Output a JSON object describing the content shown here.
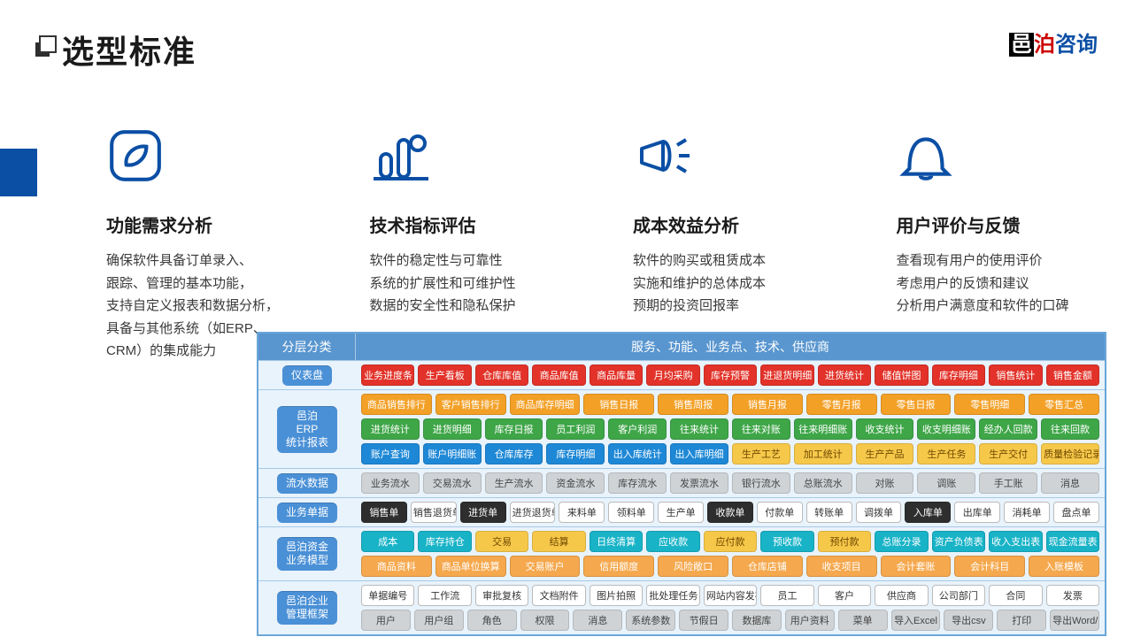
{
  "title": "选型标准",
  "logo": {
    "a": "邑",
    "b": "泊",
    "c": "咨询"
  },
  "cols": [
    {
      "h": "功能需求分析",
      "p": "确保软件具备订单录入、\n跟踪、管理的基本功能，\n支持自定义报表和数据分析，\n具备与其他系统（如ERP、\nCRM）的集成能力"
    },
    {
      "h": "技术指标评估",
      "p": "软件的稳定性与可靠性\n系统的扩展性和可维护性\n数据的安全性和隐私保护"
    },
    {
      "h": "成本效益分析",
      "p": "软件的购买或租赁成本\n实施和维护的总体成本\n预期的投资回报率"
    },
    {
      "h": "用户评价与反馈",
      "p": "查看现有用户的使用评价\n考虑用户的反馈和建议\n分析用户满意度和软件的口碑"
    }
  ],
  "diagram": {
    "head": [
      "分层分类",
      "服务、功能、业务点、技术、供应商"
    ],
    "rows": [
      {
        "left": "仪表盘",
        "lines": [
          [
            [
              "业务进度条",
              "red"
            ],
            [
              "生产看板",
              "red"
            ],
            [
              "仓库库值",
              "red"
            ],
            [
              "商品库值",
              "red"
            ],
            [
              "商品库量",
              "red"
            ],
            [
              "月均采购",
              "red"
            ],
            [
              "库存预警",
              "red"
            ],
            [
              "进退货明细",
              "red"
            ],
            [
              "进货统计",
              "red"
            ],
            [
              "储值饼图",
              "red"
            ],
            [
              "库存明细",
              "red"
            ],
            [
              "销售统计",
              "red"
            ],
            [
              "销售金额",
              "red"
            ]
          ]
        ]
      },
      {
        "left": "邑泊\nERP\n统计报表",
        "lines": [
          [
            [
              "商品销售排行",
              "orange"
            ],
            [
              "客户销售排行",
              "orange"
            ],
            [
              "商品库存明细",
              "orange"
            ],
            [
              "销售日报",
              "orange"
            ],
            [
              "销售周报",
              "orange"
            ],
            [
              "销售月报",
              "orange"
            ],
            [
              "零售月报",
              "orange"
            ],
            [
              "零售日报",
              "orange"
            ],
            [
              "零售明细",
              "orange"
            ],
            [
              "零售汇总",
              "orange"
            ]
          ],
          [
            [
              "进货统计",
              "green"
            ],
            [
              "进货明细",
              "green"
            ],
            [
              "库存日报",
              "green"
            ],
            [
              "员工利润",
              "green"
            ],
            [
              "客户利润",
              "green"
            ],
            [
              "往来统计",
              "green"
            ],
            [
              "往来对账",
              "green"
            ],
            [
              "往来明细账",
              "green"
            ],
            [
              "收支统计",
              "green"
            ],
            [
              "收支明细账",
              "green"
            ],
            [
              "经办人回款",
              "green"
            ],
            [
              "往来回款",
              "green"
            ]
          ],
          [
            [
              "账户查询",
              "blue"
            ],
            [
              "账户明细账",
              "blue"
            ],
            [
              "仓库库存",
              "blue"
            ],
            [
              "库存明细",
              "blue"
            ],
            [
              "出入库统计",
              "blue"
            ],
            [
              "出入库明细",
              "blue"
            ],
            [
              "生产工艺",
              "yellow"
            ],
            [
              "加工统计",
              "yellow"
            ],
            [
              "生产产品",
              "yellow"
            ],
            [
              "生产任务",
              "yellow"
            ],
            [
              "生产交付",
              "yellow"
            ],
            [
              "质量检验记录",
              "yellow"
            ]
          ]
        ]
      },
      {
        "left": "流水数据",
        "lines": [
          [
            [
              "业务流水",
              "gray"
            ],
            [
              "交易流水",
              "gray"
            ],
            [
              "生产流水",
              "gray"
            ],
            [
              "资金流水",
              "gray"
            ],
            [
              "库存流水",
              "gray"
            ],
            [
              "发票流水",
              "gray"
            ],
            [
              "银行流水",
              "gray"
            ],
            [
              "总账流水",
              "gray"
            ],
            [
              "对账",
              "gray"
            ],
            [
              "调账",
              "gray"
            ],
            [
              "手工账",
              "gray"
            ],
            [
              "消息",
              "gray"
            ]
          ]
        ]
      },
      {
        "left": "业务单据",
        "lines": [
          [
            [
              "销售单",
              "dark"
            ],
            [
              "销售退货单",
              "white"
            ],
            [
              "进货单",
              "dark"
            ],
            [
              "进货退货单",
              "white"
            ],
            [
              "来料单",
              "white"
            ],
            [
              "领料单",
              "white"
            ],
            [
              "生产单",
              "white"
            ],
            [
              "收款单",
              "dark"
            ],
            [
              "付款单",
              "white"
            ],
            [
              "转账单",
              "white"
            ],
            [
              "调拨单",
              "white"
            ],
            [
              "入库单",
              "dark"
            ],
            [
              "出库单",
              "white"
            ],
            [
              "消耗单",
              "white"
            ],
            [
              "盘点单",
              "white"
            ]
          ]
        ]
      },
      {
        "left": "邑泊资金\n业务模型",
        "lines": [
          [
            [
              "成本",
              "teal"
            ],
            [
              "库存持仓",
              "teal"
            ],
            [
              "交易",
              "yellow"
            ],
            [
              "结算",
              "yellow"
            ],
            [
              "日终清算",
              "teal"
            ],
            [
              "应收款",
              "teal"
            ],
            [
              "应付款",
              "yellow"
            ],
            [
              "预收款",
              "teal"
            ],
            [
              "预付款",
              "yellow"
            ],
            [
              "总账分录",
              "teal"
            ],
            [
              "资产负债表",
              "teal"
            ],
            [
              "收入支出表",
              "teal"
            ],
            [
              "现金流量表",
              "teal"
            ]
          ],
          [
            [
              "商品资料",
              "lorange"
            ],
            [
              "商品单位换算",
              "lorange"
            ],
            [
              "交易账户",
              "lorange"
            ],
            [
              "信用额度",
              "lorange"
            ],
            [
              "风险敞口",
              "lorange"
            ],
            [
              "仓库店铺",
              "lorange"
            ],
            [
              "收支项目",
              "lorange"
            ],
            [
              "会计套账",
              "lorange"
            ],
            [
              "会计科目",
              "lorange"
            ],
            [
              "入账模板",
              "lorange"
            ]
          ]
        ]
      },
      {
        "left": "邑泊企业\n管理框架",
        "lines": [
          [
            [
              "单据编号",
              "white"
            ],
            [
              "工作流",
              "white"
            ],
            [
              "审批复核",
              "white"
            ],
            [
              "文档附件",
              "white"
            ],
            [
              "图片拍照",
              "white"
            ],
            [
              "批处理任务",
              "white"
            ],
            [
              "网站内容发布",
              "white"
            ],
            [
              "员工",
              "white"
            ],
            [
              "客户",
              "white"
            ],
            [
              "供应商",
              "white"
            ],
            [
              "公司部门",
              "white"
            ],
            [
              "合同",
              "white"
            ],
            [
              "发票",
              "white"
            ]
          ],
          [
            [
              "用户",
              "gray"
            ],
            [
              "用户组",
              "gray"
            ],
            [
              "角色",
              "gray"
            ],
            [
              "权限",
              "gray"
            ],
            [
              "消息",
              "gray"
            ],
            [
              "系统参数",
              "gray"
            ],
            [
              "节假日",
              "gray"
            ],
            [
              "数据库",
              "gray"
            ],
            [
              "用户资料",
              "gray"
            ],
            [
              "菜单",
              "gray"
            ],
            [
              "导入Excel",
              "gray"
            ],
            [
              "导出csv",
              "gray"
            ],
            [
              "打印",
              "gray"
            ],
            [
              "导出Word/PDF",
              "gray"
            ]
          ]
        ]
      }
    ]
  }
}
